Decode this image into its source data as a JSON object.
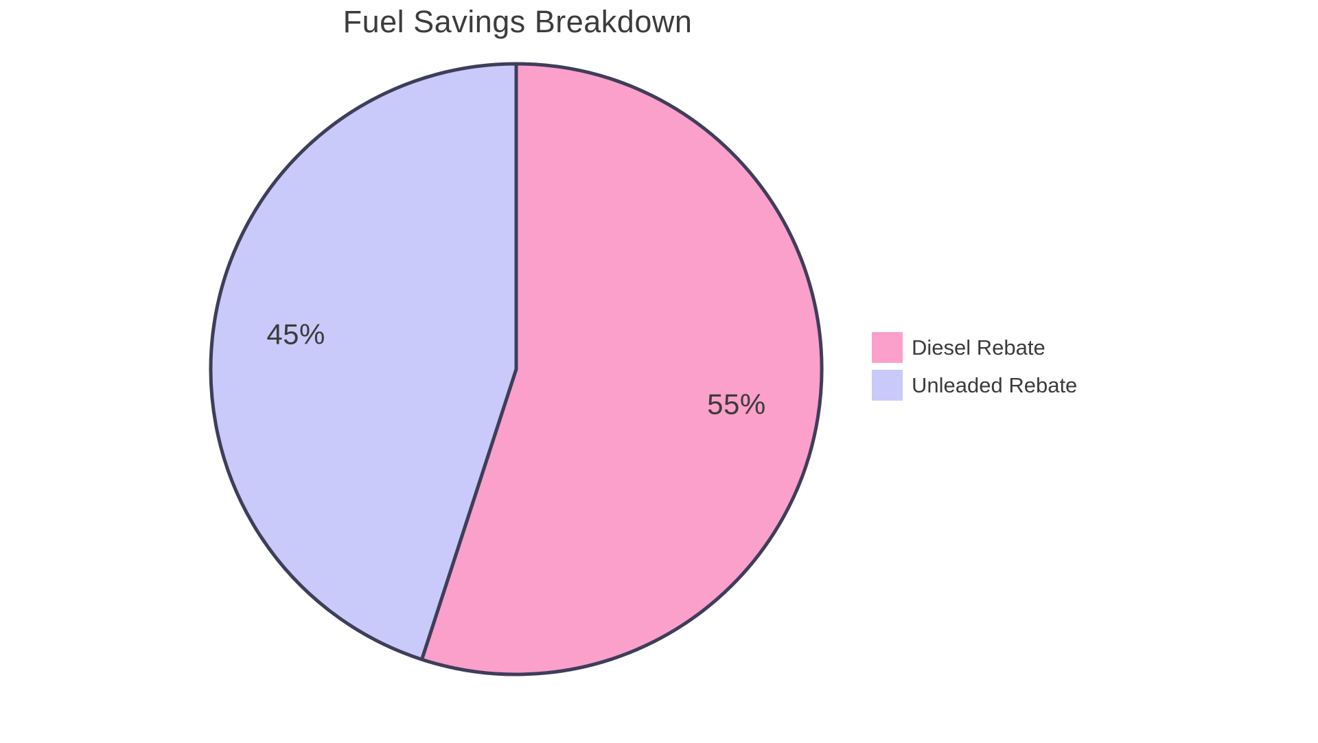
{
  "title": "Fuel Savings Breakdown",
  "chart_data": {
    "type": "pie",
    "title": "Fuel Savings Breakdown",
    "slices": [
      {
        "label": "Diesel Rebate",
        "value": 55,
        "pct_label": "55%",
        "color": "#FB9FCB"
      },
      {
        "label": "Unleaded Rebate",
        "value": 45,
        "pct_label": "45%",
        "color": "#C9C9FA"
      }
    ],
    "start_angle_deg": 0,
    "direction": "clockwise",
    "stroke_color": "#3E3E5A",
    "stroke_width": 5,
    "label_color": "#3B3B3B",
    "label_radius_fraction": 0.73,
    "legend_position": "right",
    "background": "#FFFFFF"
  },
  "legend": {
    "items": [
      {
        "label": "Diesel Rebate",
        "color": "#FB9FCB"
      },
      {
        "label": "Unleaded Rebate",
        "color": "#C9C9FA"
      }
    ]
  }
}
